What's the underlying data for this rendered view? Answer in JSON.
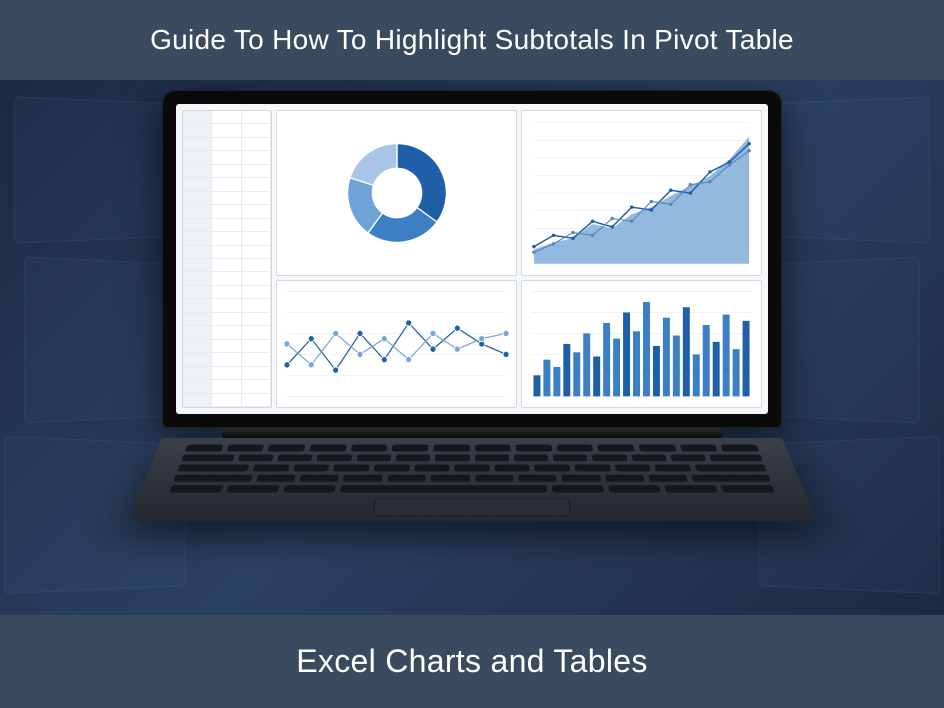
{
  "header": {
    "title": "Guide To How To Highlight Subtotals In Pivot Table"
  },
  "footer": {
    "title": "Excel Charts and Tables"
  },
  "colors": {
    "bar_bg": "#3a4a5f",
    "text": "#ffffff",
    "screen_bg": "#f5f7fa",
    "panel_border": "#d0d8e0",
    "grid_line": "#e0e6ec"
  },
  "donut_chart": {
    "type": "donut",
    "slices": [
      {
        "value": 35,
        "color": "#1e5fa8"
      },
      {
        "value": 25,
        "color": "#3d7fc4"
      },
      {
        "value": 20,
        "color": "#6fa3d8"
      },
      {
        "value": 20,
        "color": "#a8c5e8"
      }
    ],
    "inner_radius": 0.5,
    "background_color": "#ffffff"
  },
  "area_line_chart": {
    "type": "area+line",
    "x_points": [
      0,
      1,
      2,
      3,
      4,
      5,
      6,
      7,
      8,
      9,
      10,
      11
    ],
    "area_values": [
      10,
      15,
      18,
      28,
      25,
      35,
      40,
      48,
      55,
      62,
      74,
      90
    ],
    "area_fill": "#3d7fc4",
    "area_opacity": 0.55,
    "line1_values": [
      12,
      20,
      18,
      30,
      26,
      40,
      38,
      52,
      50,
      65,
      72,
      85
    ],
    "line1_color": "#1e5fa8",
    "line1_width": 1.5,
    "line2_values": [
      8,
      14,
      22,
      20,
      32,
      30,
      44,
      42,
      56,
      58,
      70,
      80
    ],
    "line2_color": "#5a89b8",
    "line2_width": 1.2,
    "ylim": [
      0,
      100
    ],
    "grid_color": "#e0e6ec",
    "background_color": "#ffffff",
    "ytick_count": 8
  },
  "scatter_line_chart": {
    "type": "line+markers",
    "x_points": [
      0,
      1,
      2,
      3,
      4,
      5,
      6,
      7,
      8,
      9
    ],
    "series1": [
      30,
      55,
      25,
      60,
      35,
      70,
      45,
      65,
      50,
      40
    ],
    "series1_color": "#1e5fa8",
    "series2": [
      50,
      30,
      60,
      40,
      55,
      35,
      60,
      45,
      55,
      60
    ],
    "series2_color": "#7aa6d4",
    "marker": "circle",
    "marker_size": 3,
    "line_width": 1.2,
    "ylim": [
      0,
      100
    ],
    "background_color": "#ffffff",
    "grid_color": "#e0e6ec"
  },
  "bar_chart": {
    "type": "bar",
    "values": [
      20,
      35,
      28,
      50,
      42,
      60,
      38,
      70,
      55,
      80,
      62,
      90,
      48,
      75,
      58,
      85,
      40,
      68,
      52,
      78,
      45,
      72
    ],
    "bar_color": "#3d7fc4",
    "bar_accent_color": "#1e5fa8",
    "ylim": [
      0,
      100
    ],
    "bar_width": 0.7,
    "background_color": "#ffffff",
    "grid_color": "#e0e6ec"
  },
  "side_table": {
    "type": "table",
    "columns": 3,
    "rows": 22,
    "header_bg": "#eef2f7",
    "border_color": "#e6ecf2"
  }
}
